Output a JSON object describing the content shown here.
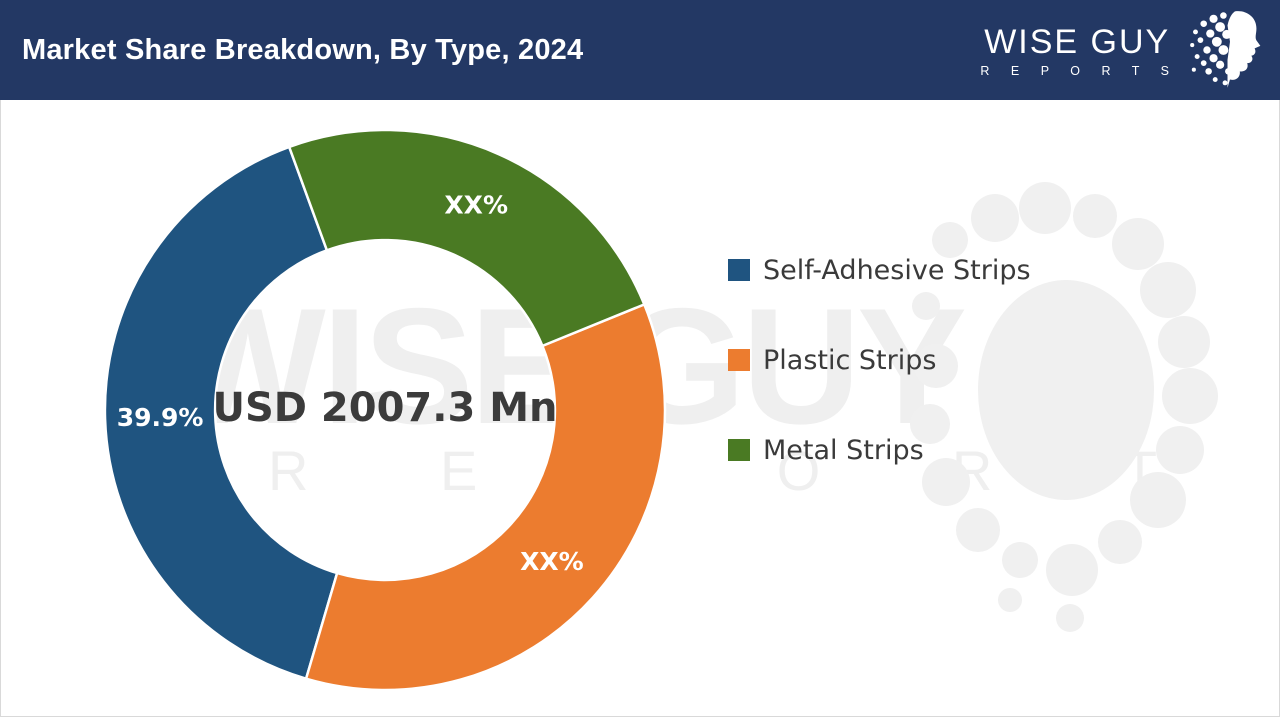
{
  "header": {
    "title": "Market Share Breakdown, By Type, 2024"
  },
  "brand": {
    "line1": "WISE GUY",
    "line2": "R E P O R T S"
  },
  "watermark": {
    "line1": "WISE GUY",
    "line2": "R E P O R T S"
  },
  "chart_data": {
    "type": "pie",
    "subtype": "donut",
    "title": "Market Share Breakdown, By Type, 2024",
    "center_label": "USD 2007.3 Mn",
    "start_angle_deg": 110,
    "direction": "counterclockwise",
    "legend_position": "right",
    "series": [
      {
        "name": "Self-Adhesive Strips",
        "value_pct": 39.9,
        "display_label": "39.9%",
        "color": "#1F5480"
      },
      {
        "name": "Plastic Strips",
        "value_pct": 35.7,
        "display_label": "XX%",
        "color": "#EC7C2F"
      },
      {
        "name": "Metal Strips",
        "value_pct": 24.4,
        "display_label": "XX%",
        "color": "#4A7A23"
      }
    ]
  }
}
